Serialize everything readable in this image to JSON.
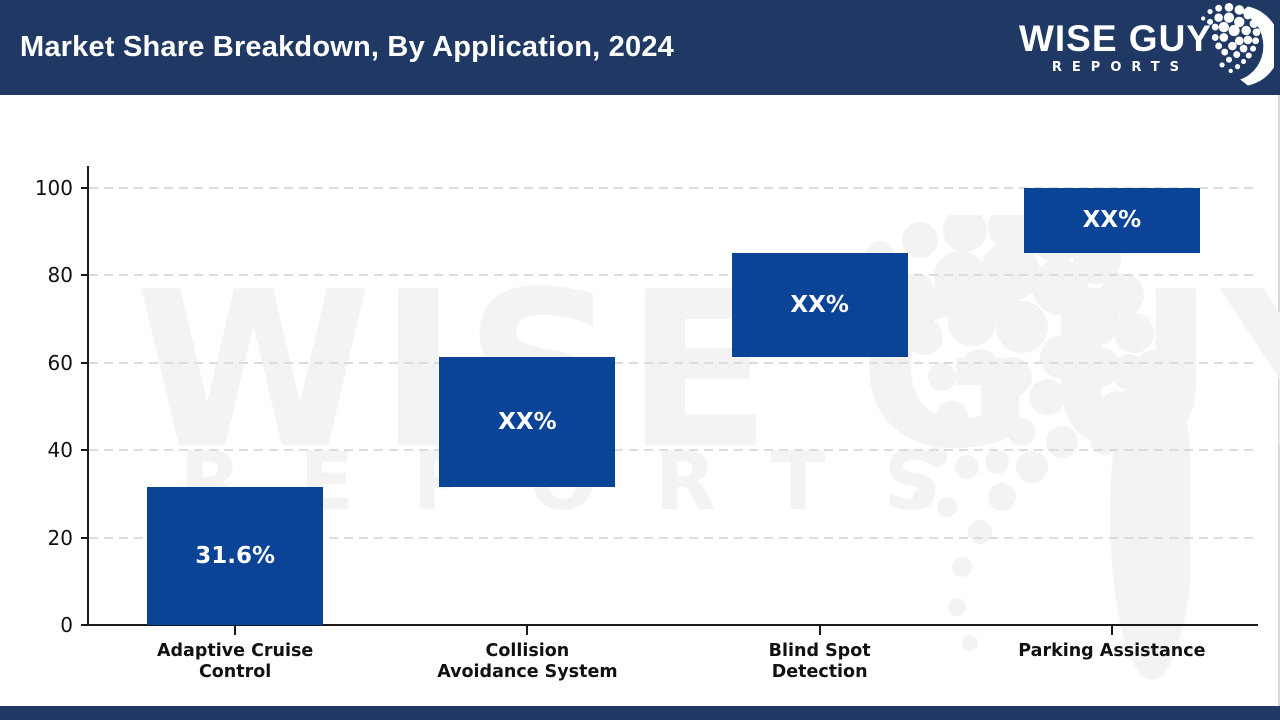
{
  "header": {
    "title": "Market Share Breakdown, By Application, 2024",
    "logo": {
      "line1": "WISE GUY",
      "line2": "REPORTS"
    },
    "bg_color": "#1F3864"
  },
  "watermark": {
    "line1": "WISE GUY",
    "line2": "REPORTS",
    "color": "#F3F3F3"
  },
  "chart_data": {
    "type": "bar",
    "variant": "waterfall-floating-bars",
    "title": "Market Share Breakdown, By Application, 2024",
    "categories": [
      "Adaptive Cruise\nControl",
      "Collision\nAvoidance System",
      "Blind Spot\nDetection",
      "Parking Assistance"
    ],
    "segments": [
      {
        "from": 0,
        "to": 31.6,
        "label": "31.6%"
      },
      {
        "from": 31.6,
        "to": 61.2,
        "label": "XX%"
      },
      {
        "from": 61.2,
        "to": 85.0,
        "label": "XX%"
      },
      {
        "from": 85.0,
        "to": 100.0,
        "label": "XX%"
      }
    ],
    "yticks": [
      0,
      20,
      40,
      60,
      80,
      100
    ],
    "ylim": [
      0,
      105
    ],
    "xlabel": "",
    "ylabel": "",
    "grid": "horizontal-dashed",
    "legend": "none",
    "bar_color": "#0B4397",
    "bar_label_color": "#FFFFFF",
    "grid_color": "#DCDCDC",
    "axis_color": "#1A1A1A"
  }
}
